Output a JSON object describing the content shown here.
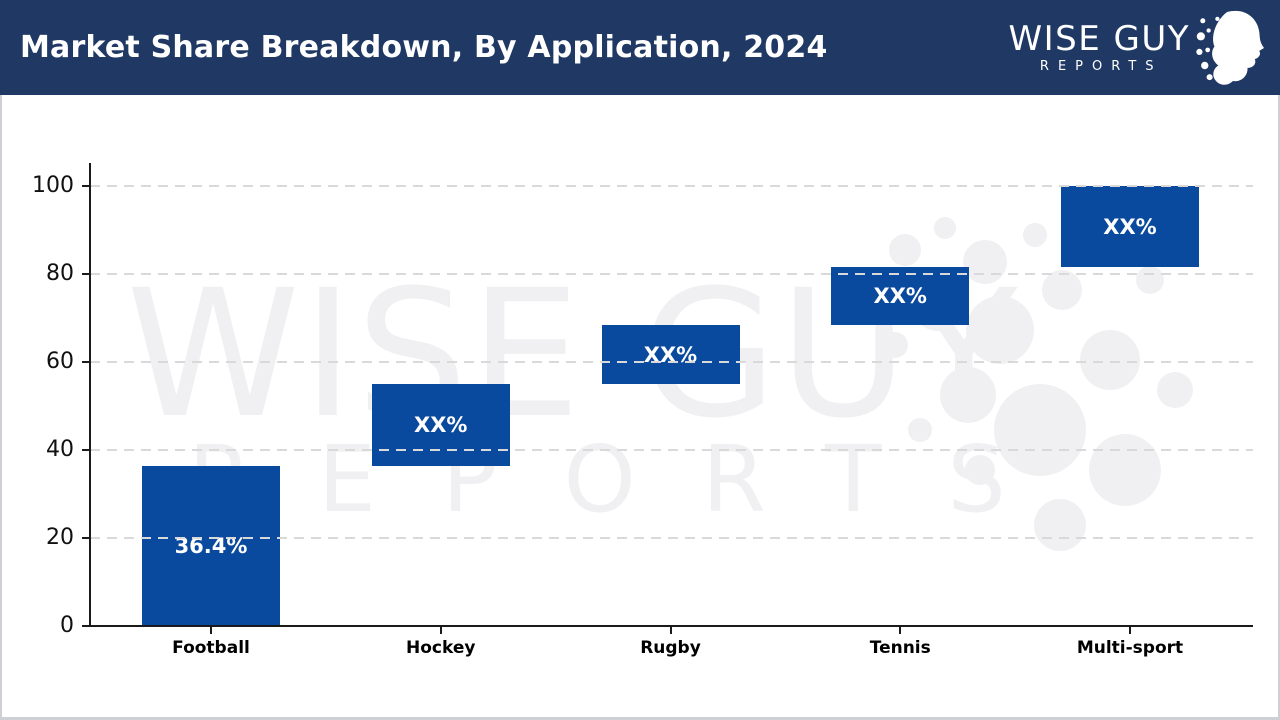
{
  "header": {
    "title": "Market Share Breakdown, By Application, 2024",
    "bg_color": "#1f3864"
  },
  "logo": {
    "wordmark": "WISE GUY",
    "subtext": "REPORTS"
  },
  "watermark": {
    "line1": "WISE GUY",
    "line2": "REPORTS"
  },
  "chart_data": {
    "type": "bar",
    "subtype": "waterfall",
    "title": "Market Share Breakdown, By Application, 2024",
    "xlabel": "",
    "ylabel": "",
    "categories": [
      "Football",
      "Hockey",
      "Rugby",
      "Tennis",
      "Multi-sport"
    ],
    "segments": [
      {
        "category": "Football",
        "start": 0,
        "end": 36.4,
        "label": "36.4%"
      },
      {
        "category": "Hockey",
        "start": 36.4,
        "end": 55.1,
        "label": "XX%"
      },
      {
        "category": "Rugby",
        "start": 55.1,
        "end": 68.3,
        "label": "XX%"
      },
      {
        "category": "Tennis",
        "start": 68.3,
        "end": 81.5,
        "label": "XX%"
      },
      {
        "category": "Multi-sport",
        "start": 81.5,
        "end": 100,
        "label": "XX%"
      }
    ],
    "yticks": [
      0,
      20,
      40,
      60,
      80,
      100
    ],
    "ylim": [
      0,
      105
    ],
    "grid": "horizontal-dashed",
    "legend": "none",
    "bar_color": "#0a4a9e",
    "value_label_color": "#ffffff",
    "grid_color": "#d9d9d9",
    "axis_color": "#1a1a1a"
  }
}
